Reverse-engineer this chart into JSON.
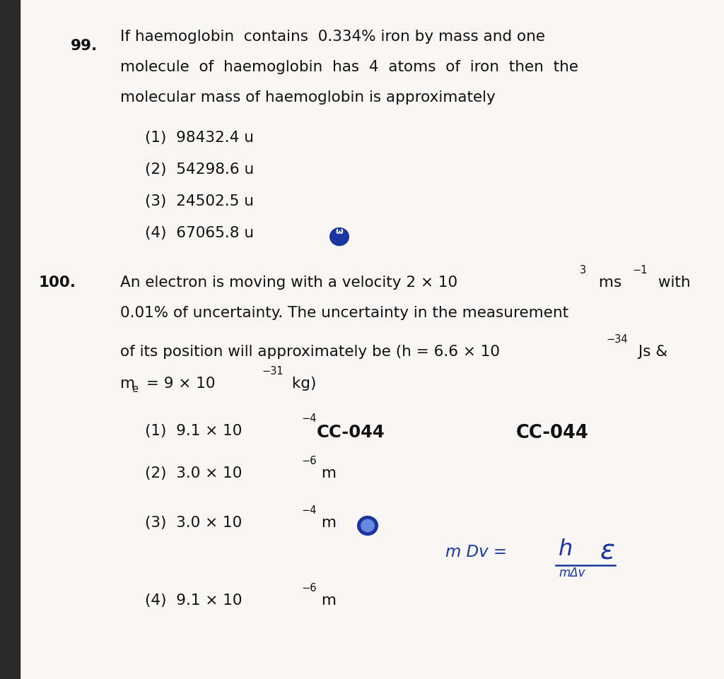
{
  "bg_color": "#f8f7f5",
  "text_color": "#111111",
  "blue_color": "#1a35a0",
  "dark_color": "#1a1a1a",
  "figsize": [
    10.24,
    9.61
  ],
  "dpi": 100,
  "fs": 15.5,
  "fs_super": 10.5,
  "q99_line1": "If haemoglobin  contains  0.334% iron by mass and one",
  "q99_line2": "molecule  of  haemoglobin  has  4  atoms  of  iron  then  the",
  "q99_line3": "molecular mass of haemoglobin is approximately",
  "q99_opt1": "(1)  98432.4 u",
  "q99_opt2": "(2)  54298.6 u",
  "q99_opt3": "(3)  24502.5 u",
  "q99_opt4": "(4)  67065.8 u",
  "q100_line2": "0.01% of uncertainty. The uncertainty in the measurement",
  "q100_line3": "of its position will approximately be (h = 6.6 × 10",
  "q100_line3b": " Js &",
  "q100_line4a": " = 9 × 10",
  "q100_line4b": " kg)",
  "q100_opt1a": "(1)  9.1 × 10",
  "q100_opt2a": "(2)  3.0 × 10",
  "q100_opt2b": " m",
  "q100_opt3a": "(3)  3.0 × 10",
  "q100_opt3b": " m",
  "q100_opt4a": "(4)  9.1 × 10",
  "q100_opt4b": " m",
  "cc044_text": "CC-044",
  "cc044_text2": "CC-044"
}
